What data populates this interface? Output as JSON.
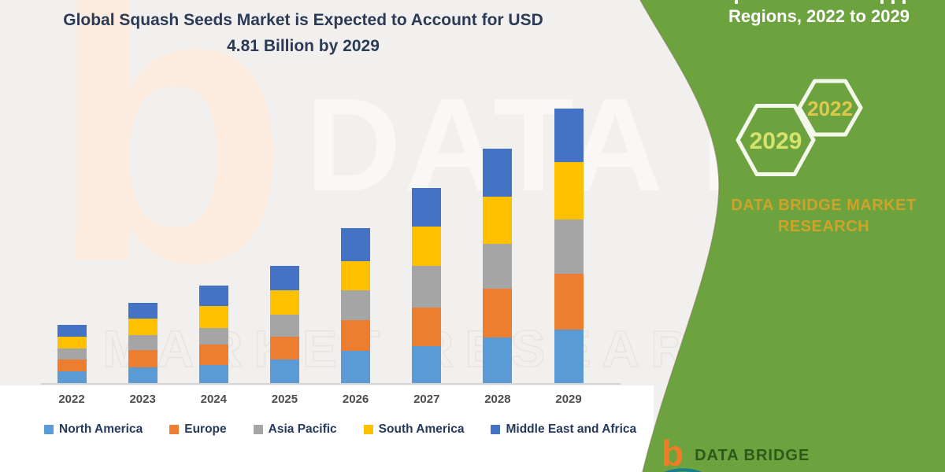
{
  "title": {
    "line1": "Global Squash Seeds Market is Expected to Account for USD",
    "line2": "4.81 Billion by 2029"
  },
  "chart_data": {
    "type": "bar",
    "subtype": "stacked-vertical",
    "title": "Global Squash Seeds Market is Expected to Account for USD 4.81 Billion by 2029",
    "unit": "USD Billion",
    "categories": [
      "2022",
      "2023",
      "2024",
      "2025",
      "2026",
      "2027",
      "2028",
      "2029"
    ],
    "series": [
      {
        "name": "North America",
        "color": "#5B9BD5",
        "values": [
          0.2,
          0.28,
          0.32,
          0.41,
          0.56,
          0.65,
          0.8,
          0.94
        ]
      },
      {
        "name": "Europe",
        "color": "#ED7D31",
        "values": [
          0.22,
          0.3,
          0.36,
          0.4,
          0.54,
          0.67,
          0.85,
          0.98
        ]
      },
      {
        "name": "Asia Pacific",
        "color": "#A5A5A5",
        "values": [
          0.19,
          0.26,
          0.29,
          0.39,
          0.53,
          0.73,
          0.79,
          0.95
        ]
      },
      {
        "name": "South America",
        "color": "#FFC000",
        "values": [
          0.2,
          0.29,
          0.38,
          0.42,
          0.51,
          0.69,
          0.82,
          1.0
        ]
      },
      {
        "name": "Middle East and Africa",
        "color": "#4472C4",
        "values": [
          0.21,
          0.27,
          0.36,
          0.43,
          0.58,
          0.67,
          0.84,
          0.94
        ]
      }
    ],
    "totals": [
      1.02,
      1.4,
      1.71,
      2.05,
      2.72,
      3.41,
      4.1,
      4.81
    ],
    "ylim": [
      0,
      5
    ],
    "grid": false,
    "legend_position": "bottom",
    "xlabel": "",
    "ylabel": ""
  },
  "watermarks": {
    "brand_letter": "b",
    "big_text": "DATA B",
    "outline_text": "MARKET RESEARCH"
  },
  "side_panel": {
    "background_color": "#6da33e",
    "heading": "Regions, 2022 to 2029",
    "hexagons": [
      {
        "label": "2029",
        "text_color": "#d5e36e"
      },
      {
        "label": "2022",
        "text_color": "#dec94e"
      }
    ],
    "brand_line1": "DATA BRIDGE MARKET",
    "brand_line2": "RESEARCH",
    "brand_color": "#cda32a"
  },
  "footer_logo": {
    "letter": "b",
    "text": "DATA BRIDGE"
  }
}
